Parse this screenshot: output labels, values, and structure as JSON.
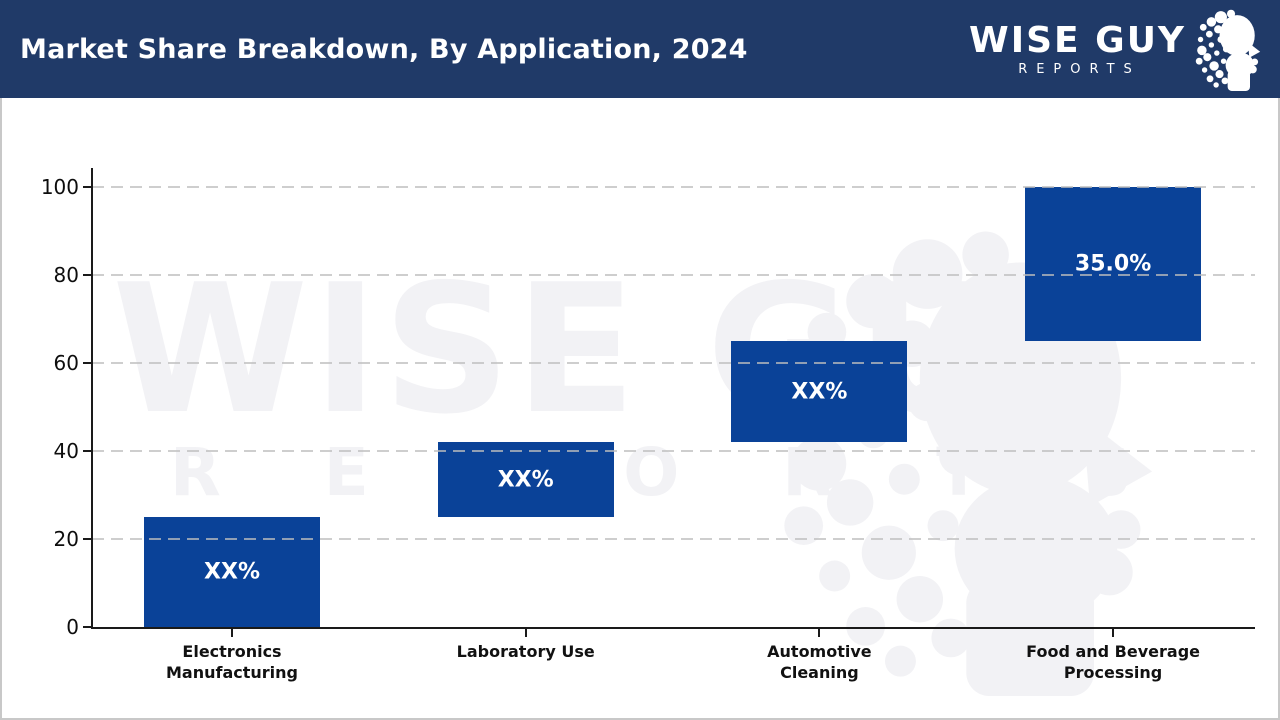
{
  "header": {
    "title": "Market Share Breakdown, By Application, 2024",
    "logo_line1": "WISE GUY",
    "logo_line2": "REPORTS"
  },
  "watermark": {
    "line1": "WISE GUY",
    "line2": "R E P O R T S"
  },
  "colors": {
    "header_bg": "#203a68",
    "bar_fill": "#0a4298",
    "bar_label_text": "#ffffff",
    "grid_line": "rgba(190,190,190,0.75)",
    "axis_line": "#1a1a1a",
    "tick_text": "#0d0d0d",
    "category_text": "#111111",
    "watermark_color": "#f2f2f5",
    "canvas_border": "#c8c8c8"
  },
  "chart_data": {
    "type": "bar",
    "subtype": "floating-waterfall",
    "title": "Market Share Breakdown, By Application, 2024",
    "categories": [
      "Electronics\nManufacturing",
      "Laboratory Use",
      "Automotive\nCleaning",
      "Food and Beverage\nProcessing"
    ],
    "bars": [
      {
        "category": "Electronics Manufacturing",
        "start": 0,
        "end": 25,
        "segment_size": 25,
        "label": "XX%"
      },
      {
        "category": "Laboratory Use",
        "start": 25,
        "end": 42,
        "segment_size": 17,
        "label": "XX%"
      },
      {
        "category": "Automotive Cleaning",
        "start": 42,
        "end": 65,
        "segment_size": 23,
        "label": "XX%"
      },
      {
        "category": "Food and Beverage Processing",
        "start": 65,
        "end": 100,
        "segment_size": 35,
        "label": "35.0%"
      }
    ],
    "yticks": [
      0,
      20,
      40,
      60,
      80,
      100
    ],
    "ylim": [
      0,
      104
    ],
    "xlabel": "",
    "ylabel": "",
    "grid": "horizontal dashed",
    "legend": null
  }
}
